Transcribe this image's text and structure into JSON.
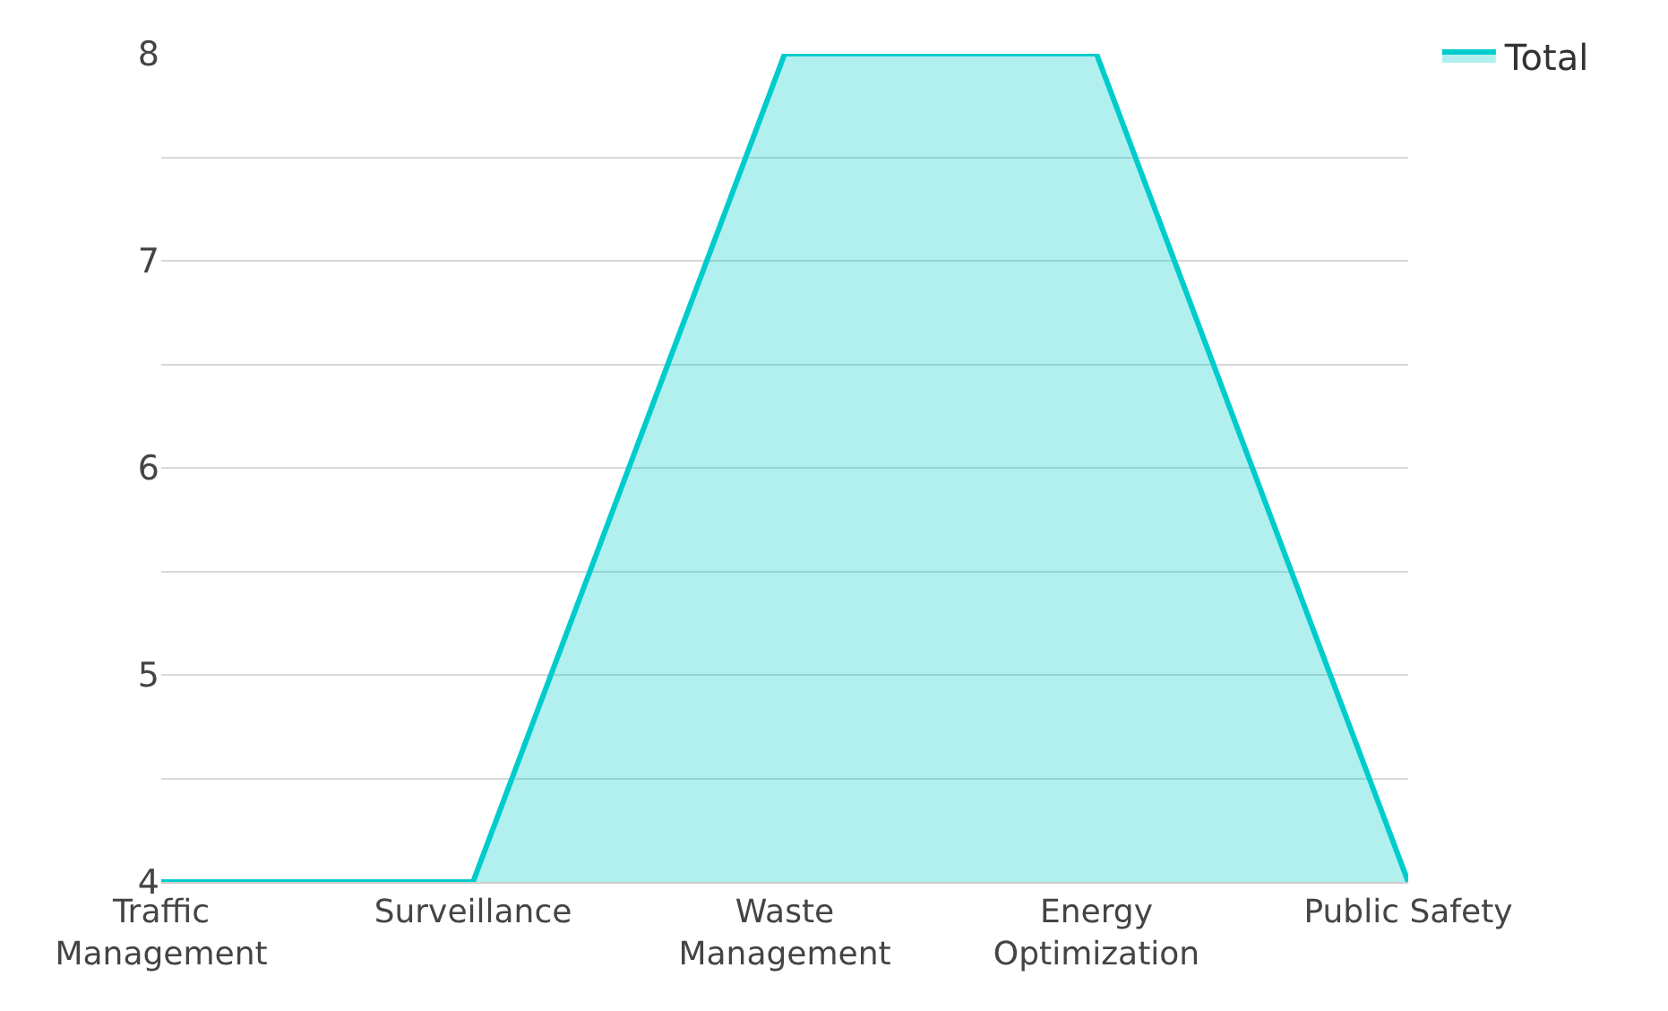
{
  "chart_data": {
    "type": "area",
    "categories": [
      "Traffic Management",
      "Surveillance",
      "Waste Management",
      "Energy Optimization",
      "Public Safety"
    ],
    "series": [
      {
        "name": "Total",
        "color": "#00cccc",
        "values": [
          4,
          4,
          8,
          8,
          4
        ]
      }
    ],
    "ylim": [
      4,
      8
    ],
    "yticks": [
      4,
      {
        "value": 4.5,
        "label": null
      },
      5,
      {
        "value": 5.5,
        "label": null
      },
      6,
      {
        "value": 6.5,
        "label": null
      },
      7,
      {
        "value": 7.5,
        "label": null
      },
      8
    ],
    "grid": "y",
    "legend": "top right",
    "marker": "none",
    "line_style": "solid"
  }
}
